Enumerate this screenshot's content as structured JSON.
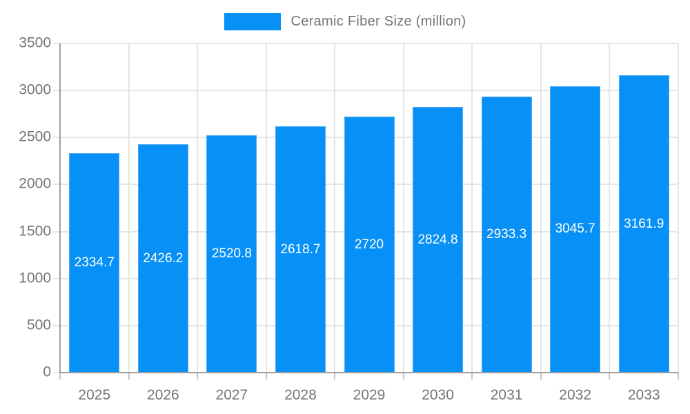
{
  "page": {
    "background": "#ffffff"
  },
  "legend": {
    "label": "Ceramic Fiber Size (million)",
    "swatch_color": "#0791f7"
  },
  "chart_data": {
    "type": "bar",
    "title": "Ceramic Fiber Size (million)",
    "categories": [
      "2025",
      "2026",
      "2027",
      "2028",
      "2029",
      "2030",
      "2031",
      "2032",
      "2033"
    ],
    "values": [
      2334.7,
      2426.2,
      2520.8,
      2618.7,
      2720,
      2824.8,
      2933.3,
      3045.7,
      3161.9
    ],
    "value_labels": [
      "2334.7",
      "2426.2",
      "2520.8",
      "2618.7",
      "2720",
      "2824.8",
      "2933.3",
      "3045.7",
      "3161.9"
    ],
    "xlabel": "",
    "ylabel": "",
    "ylim": [
      0,
      3500
    ],
    "yticks": [
      0,
      500,
      1000,
      1500,
      2000,
      2500,
      3000,
      3500
    ],
    "grid": true,
    "legend_position": "top-center",
    "colors": {
      "bar_fill": "#0791f7",
      "bar_edge": "#4fabf8",
      "value_label": "#ffffff",
      "gridline": "#e5e5e5",
      "axis_line": "#9e9e9e",
      "tick_mark": "#c4c4c4",
      "tick_label": "#757575"
    }
  }
}
